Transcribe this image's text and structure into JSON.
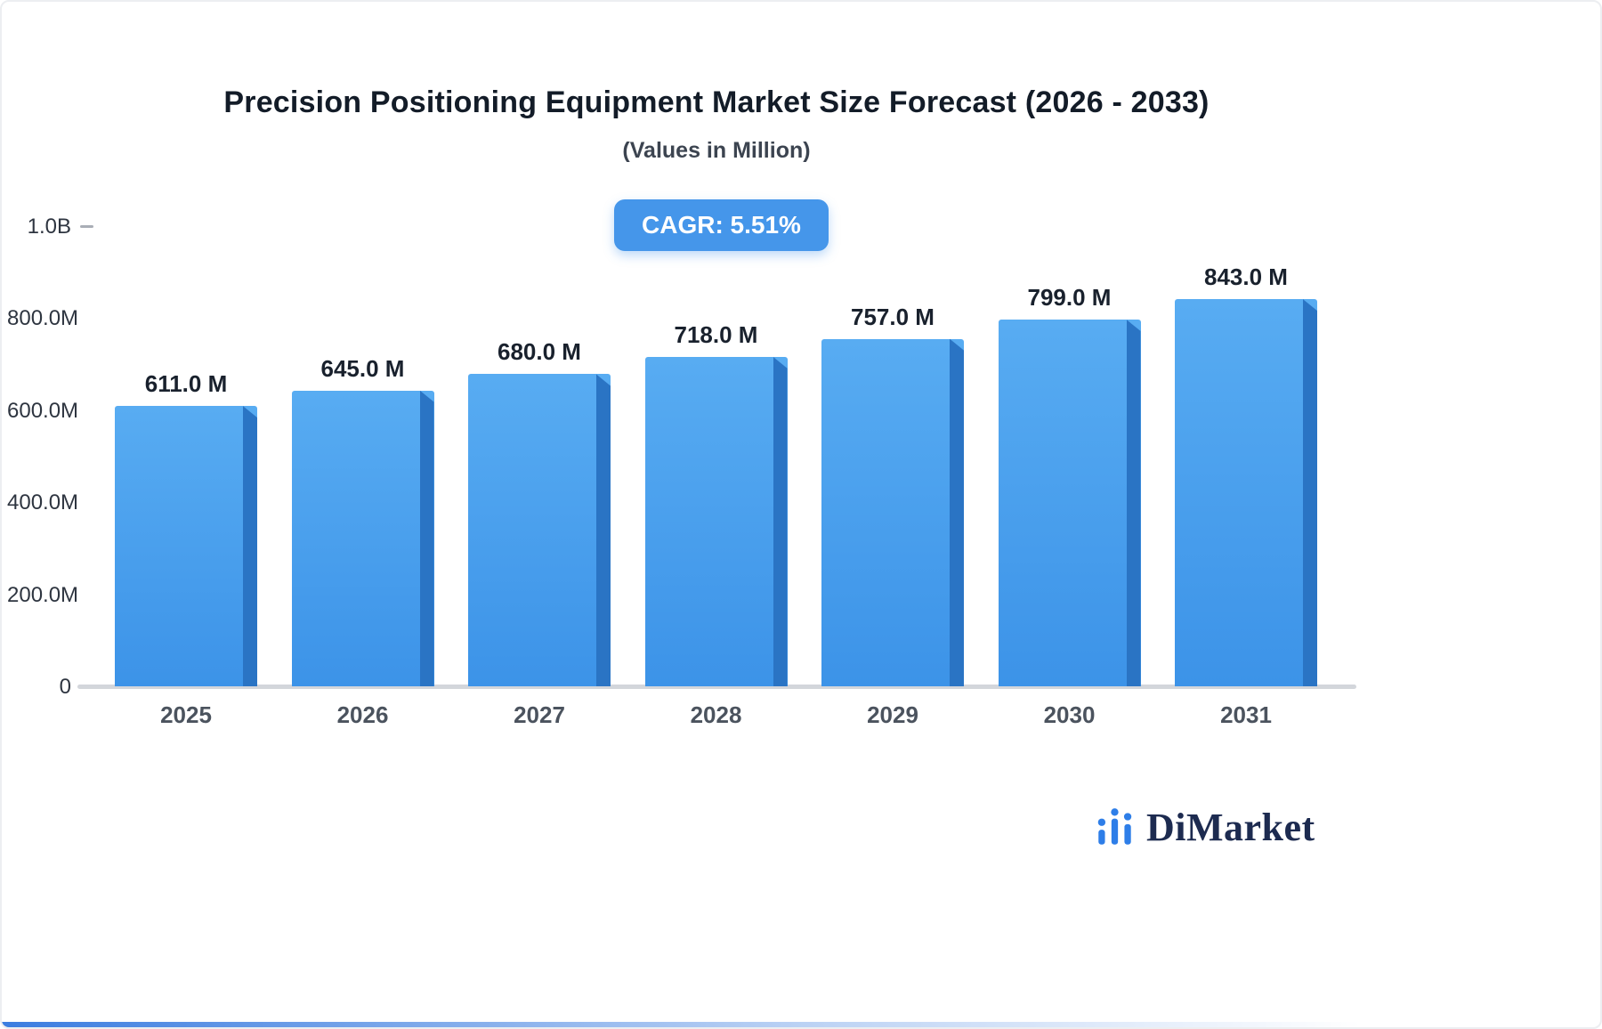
{
  "header": {
    "title": "Precision Positioning Equipment Market Size Forecast (2026 - 2033)",
    "subtitle": "(Values in Million)",
    "badge": "CAGR: 5.51%"
  },
  "chart_data": {
    "type": "bar",
    "title": "Precision Positioning Equipment Market Size Forecast (2026 - 2033)",
    "subtitle": "(Values in Million)",
    "categories": [
      "2025",
      "2026",
      "2027",
      "2028",
      "2029",
      "2030",
      "2031"
    ],
    "values": [
      611,
      645,
      680,
      718,
      757,
      799,
      843
    ],
    "bar_labels": [
      "611.0 M",
      "645.0 M",
      "680.0 M",
      "718.0 M",
      "757.0 M",
      "799.0 M",
      "843.0 M"
    ],
    "unit": "Million",
    "ylim": [
      0,
      1000
    ],
    "yticks": [
      {
        "label": "1.0B",
        "value": 1000,
        "tick": true
      },
      {
        "label": "800.0M",
        "value": 800,
        "tick": false
      },
      {
        "label": "600.0M",
        "value": 600,
        "tick": false
      },
      {
        "label": "400.0M",
        "value": 400,
        "tick": false
      },
      {
        "label": "200.0M",
        "value": 200,
        "tick": false
      },
      {
        "label": "0",
        "value": 0,
        "tick": true
      }
    ],
    "grid": false,
    "legend": false,
    "annotations": [
      "CAGR: 5.51%"
    ],
    "colors": {
      "bar_top": "#58acf2",
      "bar_bottom": "#3c93e8",
      "bar_side": "#2a74c4",
      "badge_bg": "#4596ea",
      "axis_line": "#d3d6db",
      "label_text": "#19212d",
      "tick_text": "#2e3540"
    }
  },
  "logo": {
    "text": "DiMarket",
    "icon": "mini-bar-chart-icon",
    "text_color": "#1d2b50",
    "icon_color": "#2e7ee8"
  }
}
